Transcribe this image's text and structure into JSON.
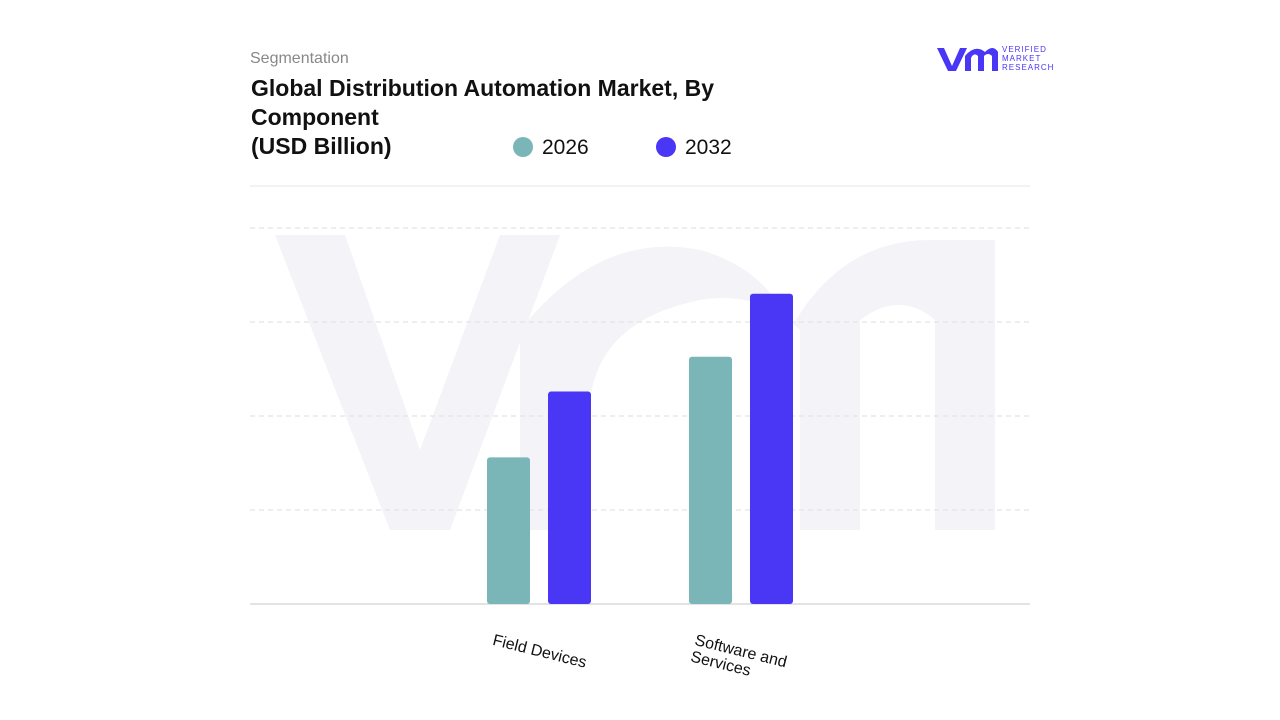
{
  "header": {
    "section": "Segmentation",
    "logo": [
      "VERIFIED",
      "MARKET",
      "RESEARCH"
    ]
  },
  "chart_data": {
    "type": "bar",
    "title": "Global Distribution Automation Market, By Component",
    "subtitle": "(USD Billion)",
    "categories": [
      "Field Devices",
      "Software and Services"
    ],
    "series": [
      {
        "name": "2026",
        "color": "#7ab5b8",
        "values": [
          1.56,
          2.63
        ]
      },
      {
        "name": "2032",
        "color": "#4a36f5",
        "values": [
          2.26,
          3.3
        ]
      }
    ],
    "ylim": [
      0,
      4.5
    ],
    "yticks": [
      0,
      1,
      2,
      3,
      4
    ],
    "grid": true
  }
}
